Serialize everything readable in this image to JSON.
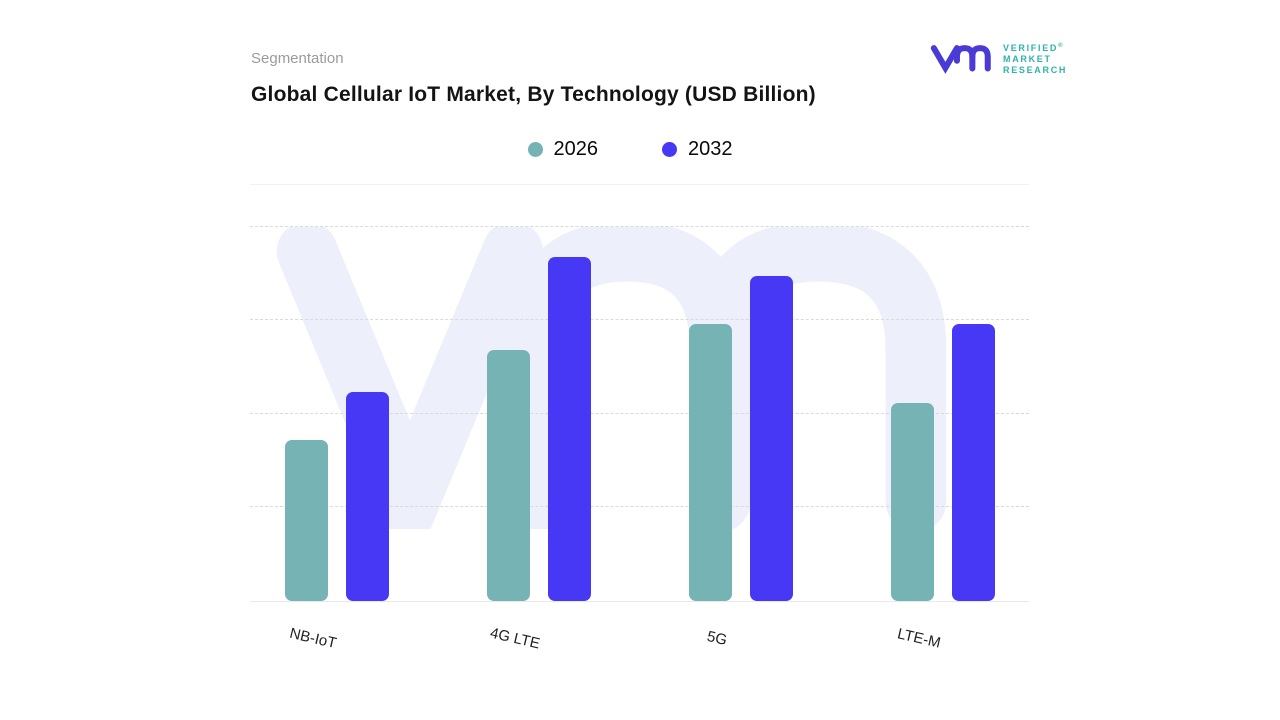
{
  "header": {
    "eyebrow": "Segmentation",
    "title": "Global Cellular IoT Market, By Technology (USD Billion)"
  },
  "brand": {
    "line1": "VERIFIED",
    "registered_mark": "®",
    "line2": "MARKET",
    "line3": "RESEARCH",
    "glyph_color": "#4a3ad6",
    "text_color": "#2fb3ab",
    "watermark_color": "#edeffa"
  },
  "chart_data": {
    "type": "bar",
    "title": "Global Cellular IoT Market, By Technology (USD Billion)",
    "categories": [
      "NB-IoT",
      "4G LTE",
      "5G",
      "LTE-M"
    ],
    "series": [
      {
        "name": "2026",
        "color": "#76b3b5",
        "values": [
          43,
          67,
          74,
          53
        ]
      },
      {
        "name": "2032",
        "color": "#4638f5",
        "values": [
          56,
          92,
          87,
          74
        ]
      }
    ],
    "xlabel": "",
    "ylabel": "",
    "ylim": [
      0,
      100
    ],
    "y_tick_labels_visible": false,
    "values_unit": "USD Billion",
    "values_note": "y-axis unlabeled; values estimated as percent of plot height from gridlines",
    "gridlines": "horizontal dotted, 4 lines",
    "gridline_color": "#d9d9de",
    "legend_position": "top-center"
  }
}
